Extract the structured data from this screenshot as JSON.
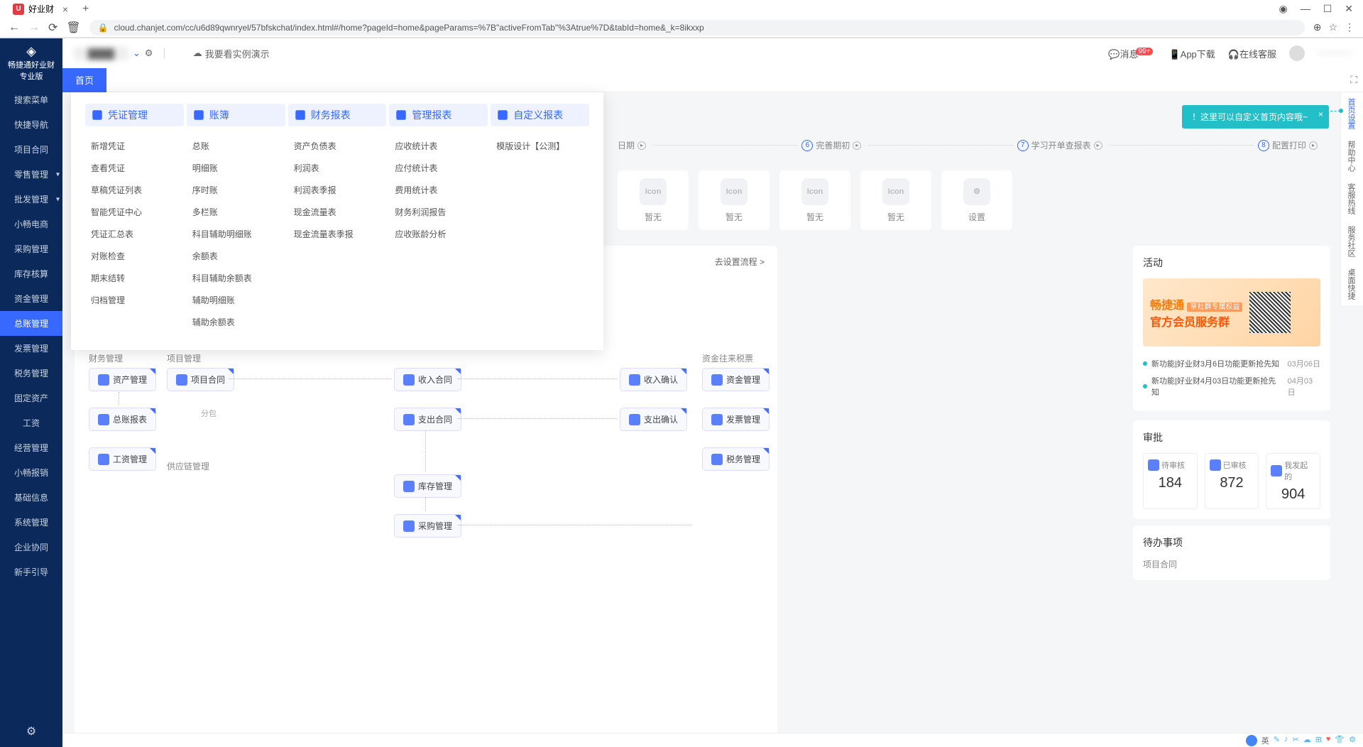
{
  "browser": {
    "tab_title": "好业财",
    "url": "cloud.chanjet.com/cc/u6d89qwnryel/57bfskchat/index.html#/home?pageId=home&pageParams=%7B\"activeFromTab\"%3Atrue%7D&tabId=home&_k=8ikxxp"
  },
  "header": {
    "demo_label": "我要看实例演示",
    "msg_label": "消息",
    "msg_badge": "99+",
    "download_label": "App下载",
    "service_label": "在线客服"
  },
  "sidebar": {
    "brand_line1": "畅捷通好业财",
    "brand_line2": "专业版",
    "items": [
      {
        "label": "搜索菜单",
        "chevron": false
      },
      {
        "label": "快捷导航",
        "chevron": false
      },
      {
        "label": "项目合同",
        "chevron": false
      },
      {
        "label": "零售管理",
        "chevron": true
      },
      {
        "label": "批发管理",
        "chevron": true
      },
      {
        "label": "小畅电商",
        "chevron": false
      },
      {
        "label": "采购管理",
        "chevron": false
      },
      {
        "label": "库存核算",
        "chevron": false
      },
      {
        "label": "资金管理",
        "chevron": false
      },
      {
        "label": "总账管理",
        "chevron": false,
        "active": true
      },
      {
        "label": "发票管理",
        "chevron": false
      },
      {
        "label": "税务管理",
        "chevron": false
      },
      {
        "label": "固定资产",
        "chevron": false
      },
      {
        "label": "工资",
        "chevron": false
      },
      {
        "label": "经营管理",
        "chevron": false
      },
      {
        "label": "小畅报销",
        "chevron": false
      },
      {
        "label": "基础信息",
        "chevron": false
      },
      {
        "label": "系统管理",
        "chevron": false
      },
      {
        "label": "企业协同",
        "chevron": false
      },
      {
        "label": "新手引导",
        "chevron": false
      }
    ]
  },
  "app_tab": {
    "label": "首页"
  },
  "tooltip": {
    "text": "！这里可以自定义首页内容哦~"
  },
  "right_rail": [
    {
      "label": "首页设置",
      "blue": true
    },
    {
      "label": "帮助中心"
    },
    {
      "label": "客服热线"
    },
    {
      "label": "服务社区"
    },
    {
      "label": "桌面快捷"
    }
  ],
  "mega_menu": {
    "cols": [
      {
        "head": "凭证管理",
        "items": [
          "新增凭证",
          "查看凭证",
          "草稿凭证列表",
          "智能凭证中心",
          "凭证汇总表",
          "对账检查",
          "期末结转",
          "归档管理"
        ]
      },
      {
        "head": "账簿",
        "items": [
          "总账",
          "明细账",
          "序时账",
          "多栏账",
          "科目辅助明细账",
          "余额表",
          "科目辅助余额表",
          "辅助明细账",
          "辅助余额表"
        ]
      },
      {
        "head": "财务报表",
        "items": [
          "资产负债表",
          "利润表",
          "利润表季报",
          "现金流量表",
          "现金流量表季报"
        ]
      },
      {
        "head": "管理报表",
        "items": [
          "应收统计表",
          "应付统计表",
          "费用统计表",
          "财务利润报告",
          "应收账龄分析"
        ]
      },
      {
        "head": "自定义报表",
        "items": [
          "模版设计【公测】"
        ]
      }
    ]
  },
  "steps": [
    {
      "label": "日期"
    },
    {
      "num": "6",
      "label": "完善期初"
    },
    {
      "num": "7",
      "label": "学习开单查报表"
    },
    {
      "num": "8",
      "label": "配置打印"
    }
  ],
  "icon_cards": [
    {
      "label": "暂无"
    },
    {
      "label": "暂无"
    },
    {
      "label": "暂无"
    },
    {
      "label": "暂无"
    },
    {
      "label": "设置",
      "gear": true
    }
  ],
  "flow": {
    "link": "去设置流程 >",
    "sections": {
      "finance": "财务管理",
      "project": "项目管理",
      "supply": "供应链管理",
      "fund": "资金往来税票"
    },
    "sub_label": "分包",
    "nodes": {
      "asset": "资产管理",
      "ledger": "总账报表",
      "salary": "工资管理",
      "contract": "项目合同",
      "income_contract": "收入合同",
      "expense_contract": "支出合同",
      "income_confirm": "收入确认",
      "expense_confirm": "支出确认",
      "fund_mgmt": "资金管理",
      "invoice": "发票管理",
      "tax": "税务管理",
      "inventory": "库存管理",
      "purchase": "采购管理"
    }
  },
  "activity": {
    "title": "活动",
    "promo_line1": "畅捷通",
    "promo_tag": "享社群专属权益",
    "promo_line2": "官方会员服务群",
    "news": [
      {
        "text": "新功能|好业财3月6日功能更新抢先知",
        "date": "03月06日"
      },
      {
        "text": "新功能|好业财4月03日功能更新抢先知",
        "date": "04月03日"
      }
    ]
  },
  "approval": {
    "title": "审批",
    "boxes": [
      {
        "label": "待审核",
        "num": "184"
      },
      {
        "label": "已审核",
        "num": "872"
      },
      {
        "label": "我发起的",
        "num": "904"
      }
    ]
  },
  "todo": {
    "title": "待办事项",
    "sub": "项目合同"
  }
}
